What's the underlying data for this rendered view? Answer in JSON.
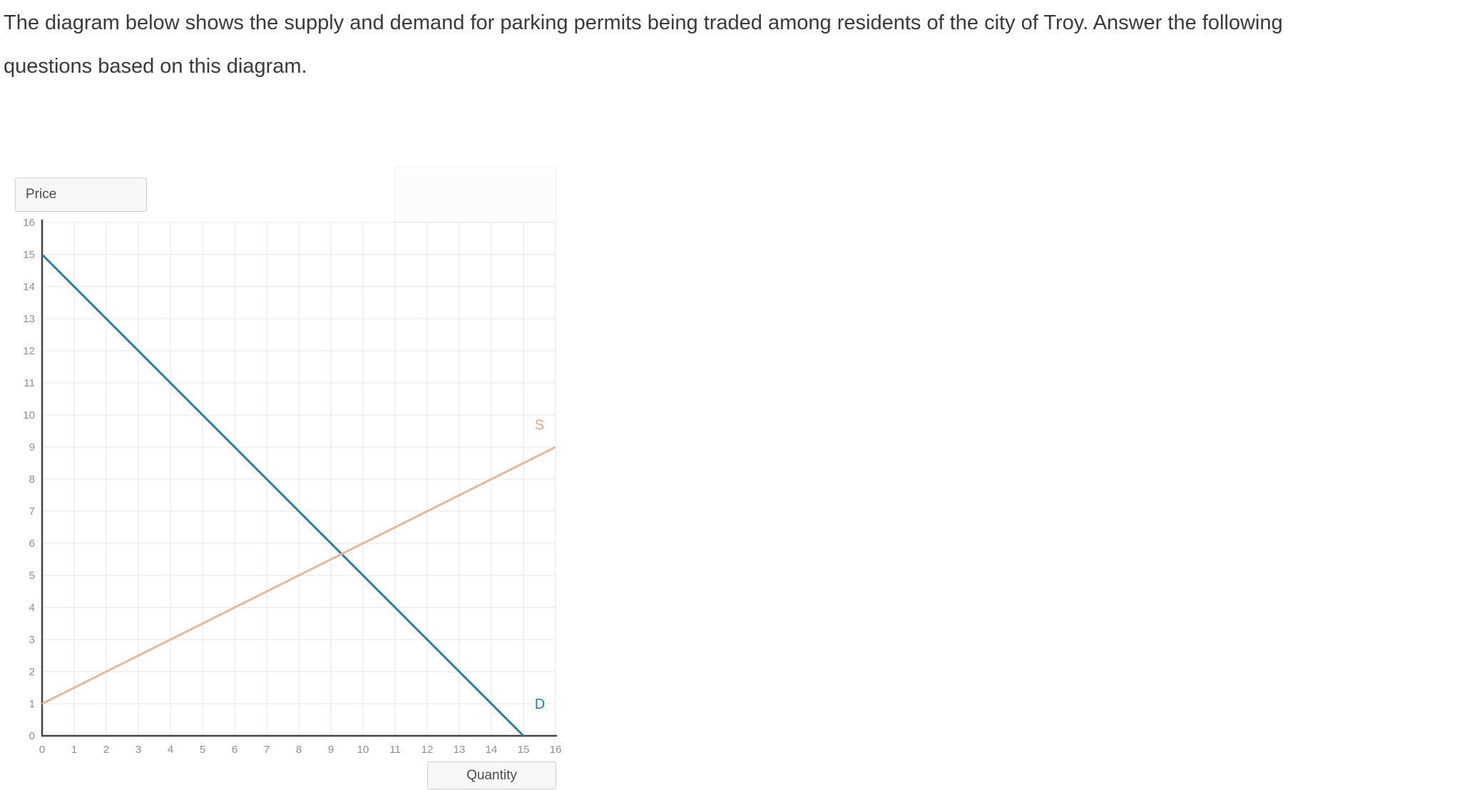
{
  "question": {
    "line1": "The diagram below shows the supply and demand for parking permits being traded among residents of the city of Troy. Answer the following",
    "line2": "questions based on this diagram."
  },
  "chart_data": {
    "type": "line",
    "title": "",
    "xlabel": "Quantity",
    "ylabel": "Price",
    "xlim": [
      0,
      16
    ],
    "ylim": [
      0,
      16
    ],
    "xticks": [
      0,
      1,
      2,
      3,
      4,
      5,
      6,
      7,
      8,
      9,
      10,
      11,
      12,
      13,
      14,
      15,
      16
    ],
    "yticks": [
      0,
      1,
      2,
      3,
      4,
      5,
      6,
      7,
      8,
      9,
      10,
      11,
      12,
      13,
      14,
      15,
      16
    ],
    "grid": true,
    "grid_color": "#e5e5e5",
    "axis_color": "#434343",
    "tick_color": "#8f8f8f",
    "series": [
      {
        "name": "D",
        "label": "D",
        "description": "Demand: price 15 at quantity 0, falling to price 0 at quantity 15",
        "color": "#2e7f9e",
        "label_color": "#2e7f9e",
        "points": [
          [
            0,
            15
          ],
          [
            15,
            0
          ]
        ],
        "label_pos": [
          15.35,
          0.85
        ]
      },
      {
        "name": "S",
        "label": "S",
        "description": "Supply: price 1 at quantity 0, rising to price 9 at quantity 16",
        "color": "#e5b79d",
        "label_color": "#d9a98c",
        "points": [
          [
            0,
            1
          ],
          [
            16,
            9
          ]
        ],
        "label_pos": [
          15.35,
          9.55
        ]
      }
    ],
    "equilibrium_estimate": {
      "quantity": 9.33,
      "price": 5.67
    }
  }
}
